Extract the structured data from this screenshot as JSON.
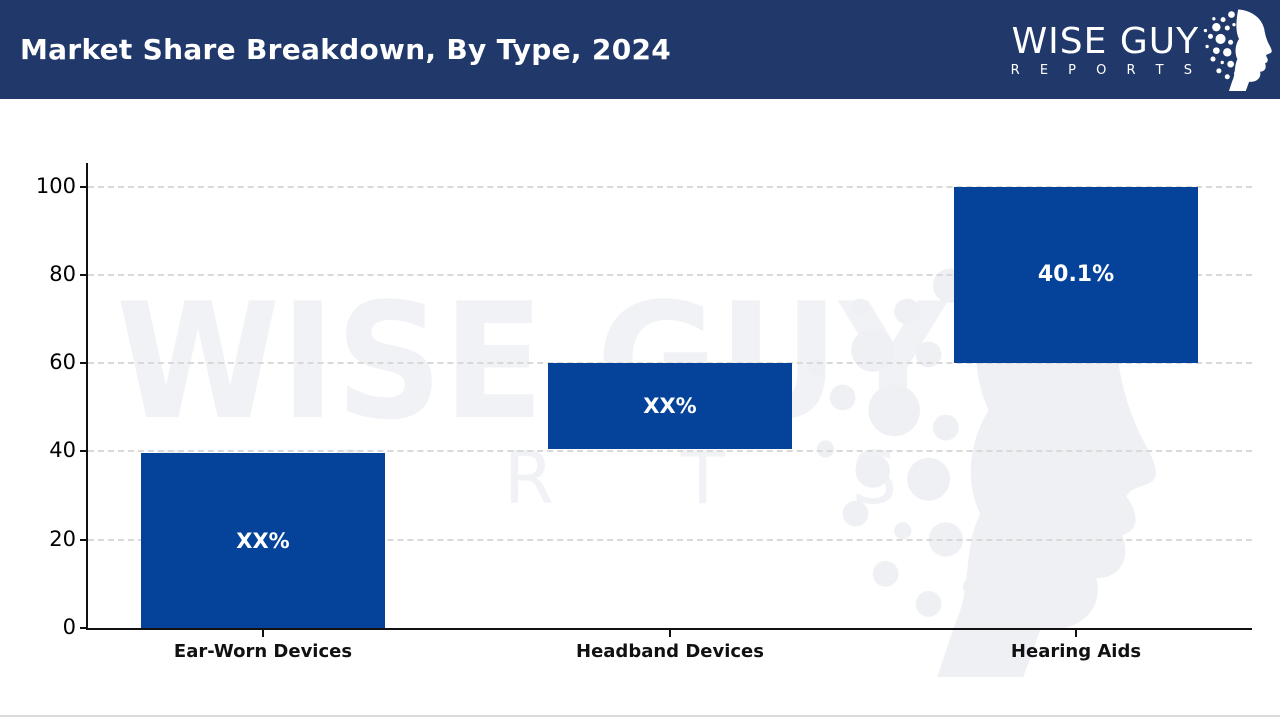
{
  "header": {
    "title": "Market Share Breakdown, By Type, 2024",
    "logo": {
      "line1": "WISE GUY",
      "line2": "R E P O R T S"
    }
  },
  "watermark": {
    "line1": "WISE GUY",
    "line2": "P O R T S"
  },
  "colors": {
    "header_bg": "#20386a",
    "bar_blue": "#05439b",
    "gridline": "#d9d9d9",
    "watermark": "#f1f2f5"
  },
  "chart_data": {
    "type": "bar",
    "subtype": "floating-waterfall",
    "title": "Market Share Breakdown, By Type, 2024",
    "categories": [
      "Ear-Worn Devices",
      "Headband Devices",
      "Hearing Aids"
    ],
    "segments": [
      {
        "category": "Ear-Worn Devices",
        "start": 0,
        "end": 39.6,
        "label": "XX%"
      },
      {
        "category": "Headband Devices",
        "start": 40.5,
        "end": 60,
        "label": "XX%"
      },
      {
        "category": "Hearing Aids",
        "start": 60,
        "end": 100,
        "label": "40.1%"
      }
    ],
    "xlabel": "",
    "ylabel": "",
    "yticks": [
      0,
      20,
      40,
      60,
      80,
      100
    ],
    "ylim": [
      0,
      105
    ],
    "grid": "horizontal-dashed",
    "legend": "none",
    "bar_color": "#05439b"
  }
}
